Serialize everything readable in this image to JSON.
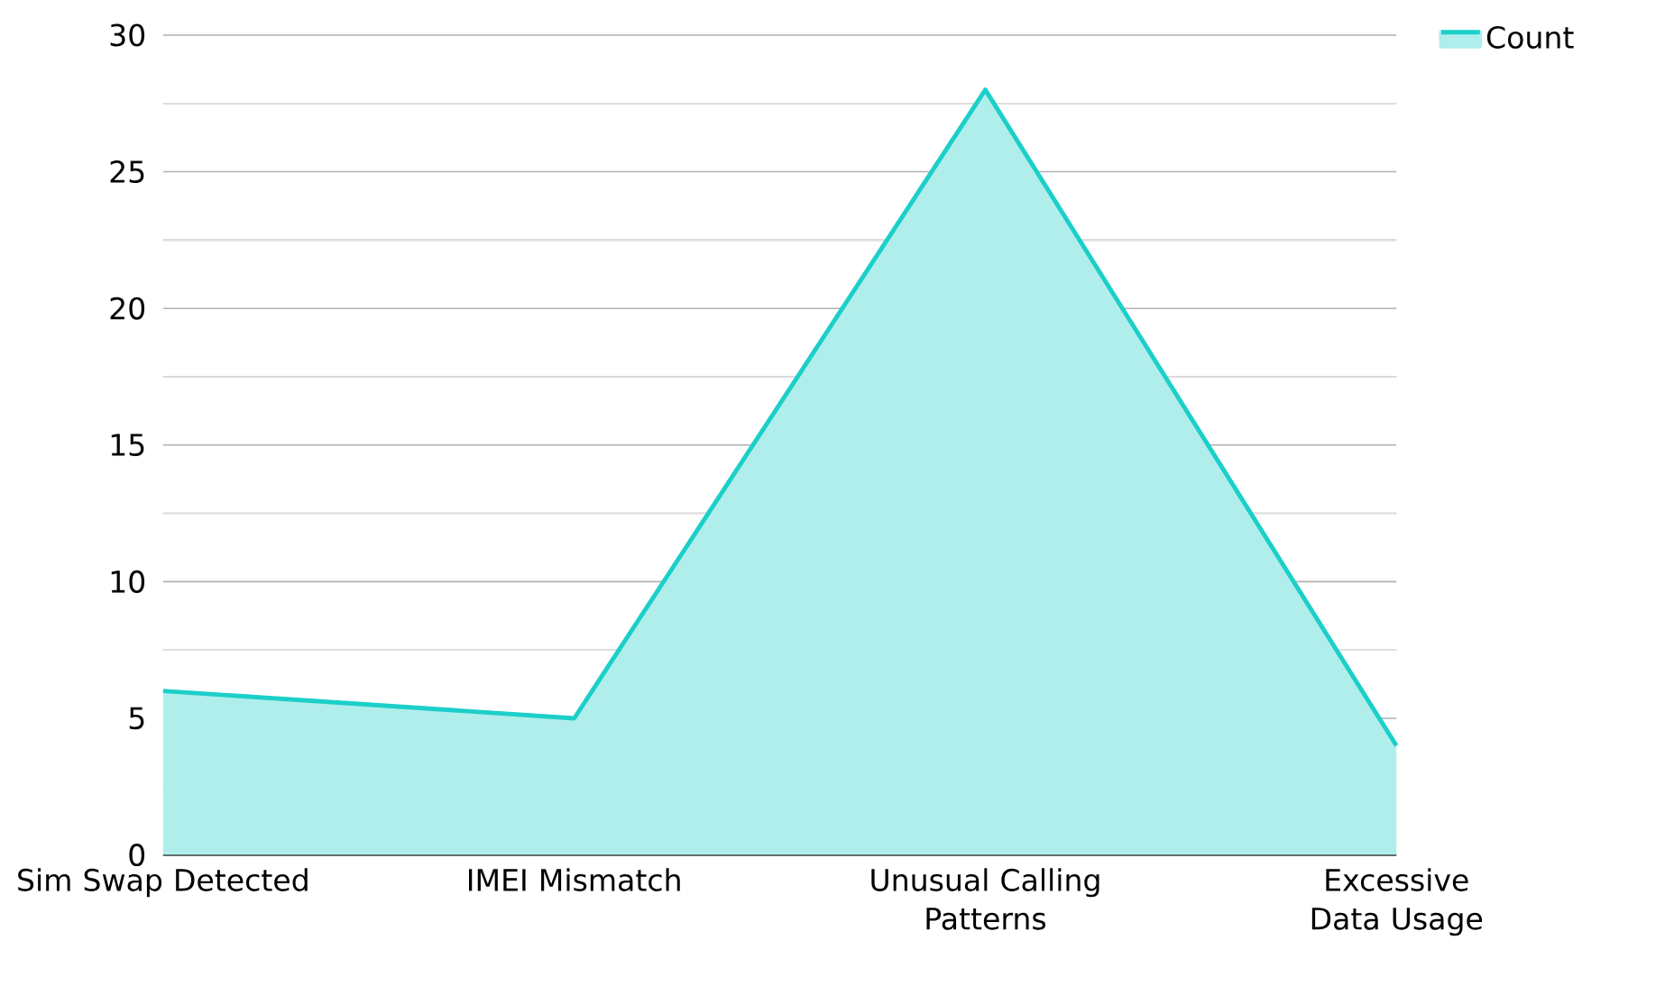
{
  "chart_data": {
    "type": "area",
    "categories": [
      "Sim Swap Detected",
      "IMEI Mismatch",
      "Unusual Calling Patterns",
      "Excessive Data Usage"
    ],
    "series": [
      {
        "name": "Count",
        "color": "#1ccfc9",
        "values": [
          6,
          5,
          28,
          4
        ]
      }
    ],
    "ylim": [
      0,
      30
    ],
    "yticks": [
      0,
      {
        "value": 2.5,
        "label": null
      },
      5,
      {
        "value": 7.5,
        "label": null
      },
      10,
      {
        "value": 12.5,
        "label": null
      },
      15,
      {
        "value": 17.5,
        "label": null
      },
      20,
      {
        "value": 22.5,
        "label": null
      },
      25,
      {
        "value": 27.5,
        "label": null
      },
      30
    ],
    "grid": "y",
    "legend": "top right"
  }
}
